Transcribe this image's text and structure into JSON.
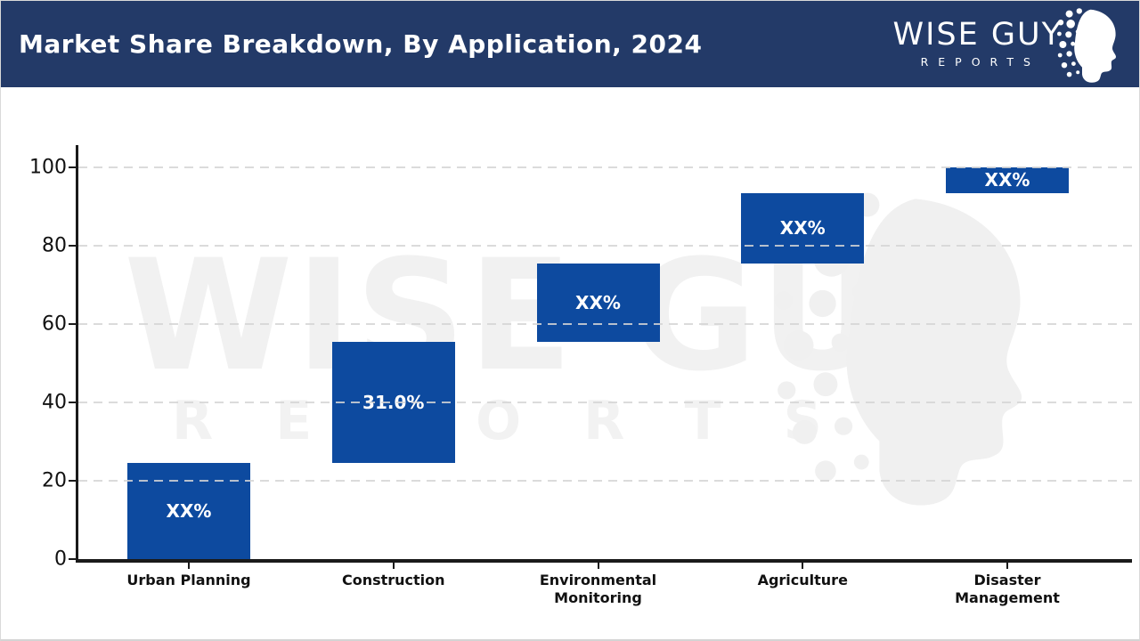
{
  "header": {
    "title": "Market Share Breakdown, By Application, 2024",
    "logo": {
      "line1": "WISE GUY",
      "line2": "REPORTS"
    }
  },
  "watermark": {
    "line1": "WISE GUY",
    "line2": "REPORTS"
  },
  "chart_data": {
    "type": "bar",
    "subtype": "waterfall-floating-bars",
    "title": "Market Share Breakdown, By Application, 2024",
    "xlabel": "",
    "ylabel": "",
    "categories": [
      "Urban Planning",
      "Construction",
      "Environmental\nMonitoring",
      "Agriculture",
      "Disaster\nManagement"
    ],
    "segments": [
      {
        "category": "Urban Planning",
        "start": 0,
        "end": 24.5,
        "value": 24.5,
        "label": "XX%"
      },
      {
        "category": "Construction",
        "start": 24.5,
        "end": 55.5,
        "value": 31.0,
        "label": "31.0%"
      },
      {
        "category": "Environmental Monitoring",
        "start": 55.5,
        "end": 75.5,
        "value": 20.0,
        "label": "XX%"
      },
      {
        "category": "Agriculture",
        "start": 75.5,
        "end": 93.5,
        "value": 18.0,
        "label": "XX%"
      },
      {
        "category": "Disaster Management",
        "start": 93.5,
        "end": 100.0,
        "value": 6.5,
        "label": "XX%"
      }
    ],
    "yticks": [
      0,
      20,
      40,
      60,
      80,
      100
    ],
    "ylim": [
      0,
      105.7
    ],
    "grid": true,
    "grid_style": "dashed",
    "legend": "none",
    "bar_color": "#0d4a9f",
    "bar_label_color": "#ffffff",
    "grid_color": "#d5d5d5",
    "axis_color": "#1a1a1a",
    "header_bg": "#233a68",
    "watermark_color": "#f1f1f1"
  }
}
